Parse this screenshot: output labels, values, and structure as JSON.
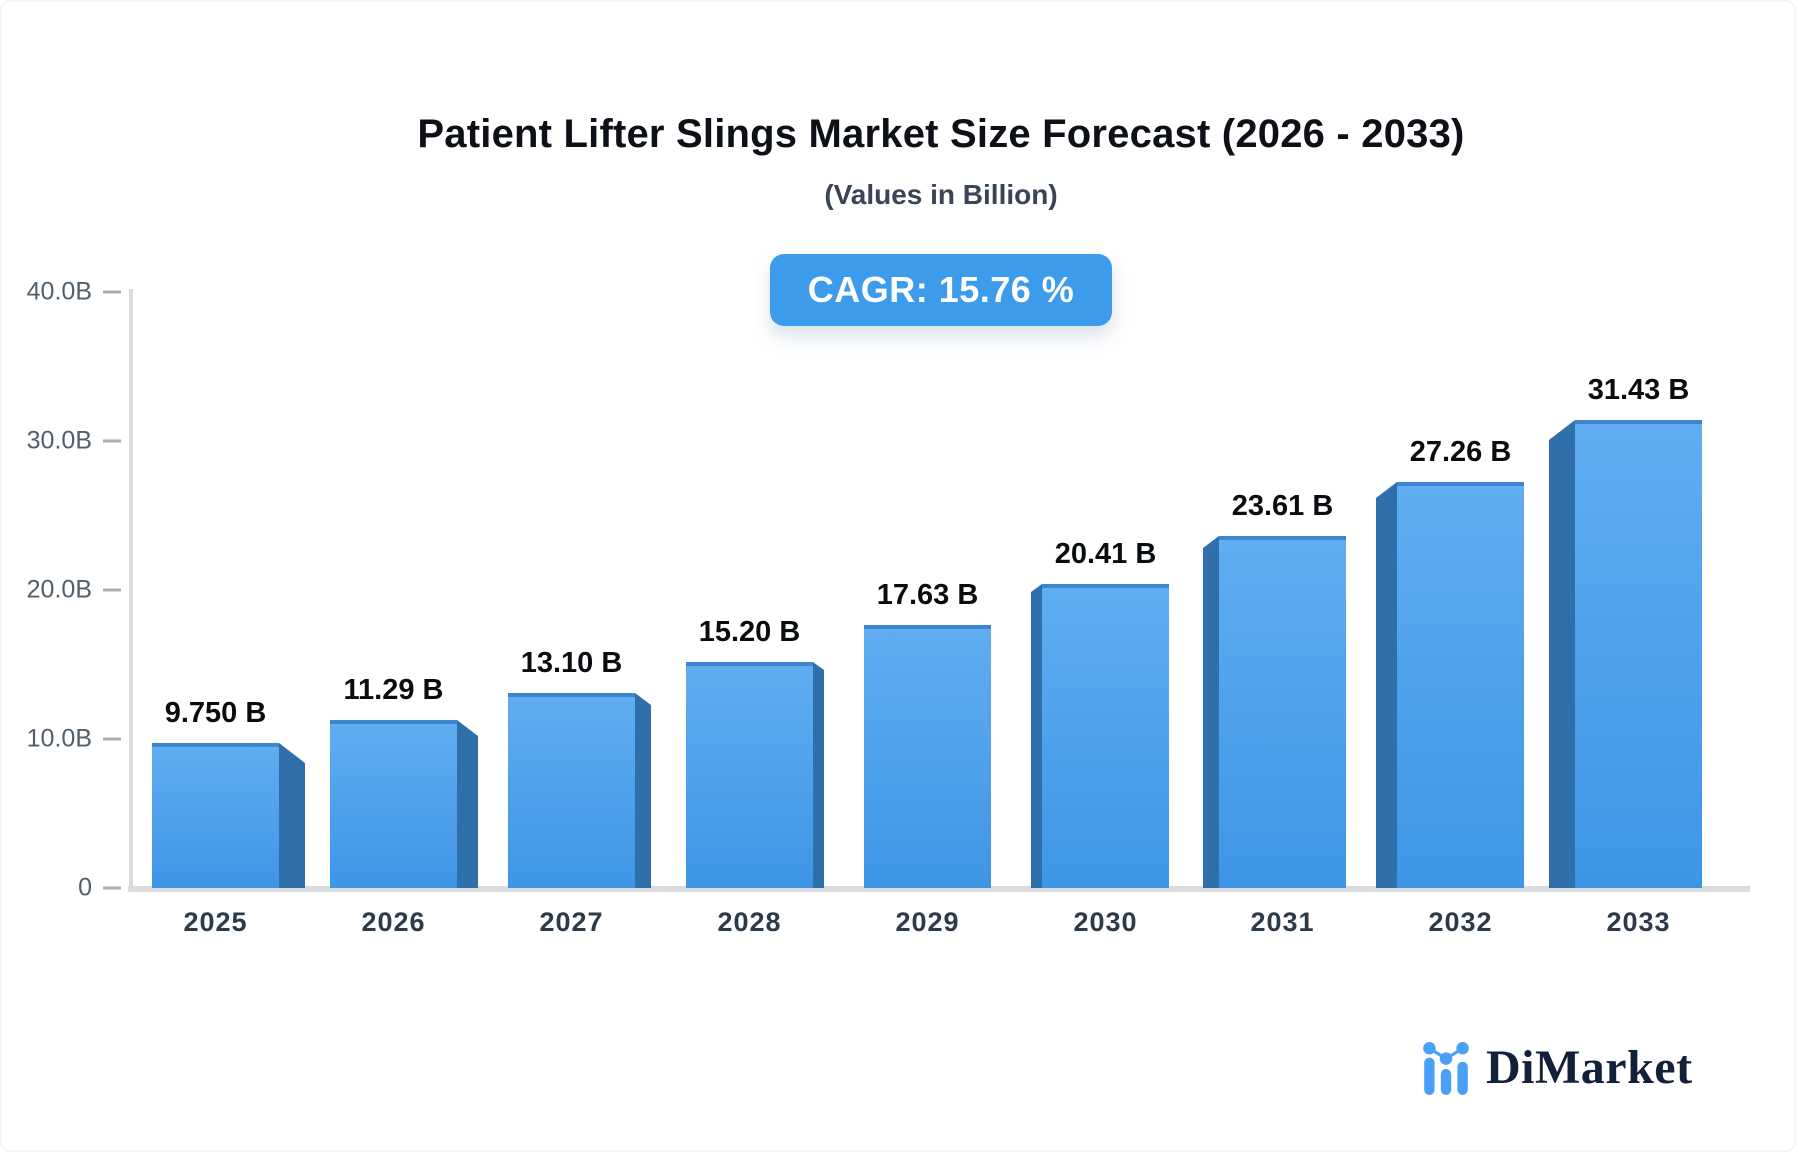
{
  "header": {
    "title": "Patient Lifter Slings Market Size Forecast (2026 - 2033)",
    "subtitle": "(Values in Billion)"
  },
  "badge": {
    "label": "CAGR: 15.76 %"
  },
  "chart_data": {
    "type": "bar",
    "title": "Patient Lifter Slings Market Size Forecast (2026 - 2033)",
    "subtitle": "(Values in Billion)",
    "cagr_percent": 15.76,
    "unit": "Billion",
    "categories": [
      "2025",
      "2026",
      "2027",
      "2028",
      "2029",
      "2030",
      "2031",
      "2032",
      "2033"
    ],
    "values": [
      9.75,
      11.29,
      13.1,
      15.2,
      17.63,
      20.41,
      23.61,
      27.26,
      31.43
    ],
    "value_labels": [
      "9.750 B",
      "11.29 B",
      "13.10 B",
      "15.20 B",
      "17.63 B",
      "20.41 B",
      "23.61 B",
      "27.26 B",
      "31.43 B"
    ],
    "xlabel": "",
    "ylabel": "",
    "ylim": [
      0,
      40
    ],
    "y_tick_labels": [
      "40.0B",
      "30.0B",
      "20.0B",
      "10.0B",
      "0"
    ],
    "grid": false,
    "legend": false,
    "style": "pseudo-3d-bars-center-perspective"
  },
  "colors": {
    "bar_top": "#60adf1",
    "bar_bottom": "#3e95e7",
    "bar_side": "#2f70ab",
    "bar_top_stroke": "#3c86cf",
    "badge_bg": "#3d9bec",
    "axis_line": "#d9dbde",
    "tick_mark": "#a6adb5",
    "logo_blue": "#4aa0f6",
    "logo_navy": "#13203a"
  },
  "logo": {
    "text": "DiMarket",
    "icon": "mini-bar-chart-icon"
  }
}
